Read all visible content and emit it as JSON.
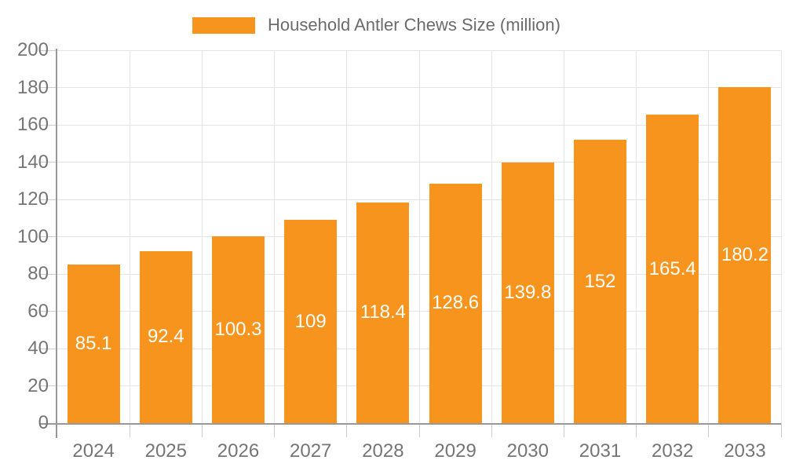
{
  "chart_data": {
    "type": "bar",
    "title": "Household Antler Chews Size (million)",
    "categories": [
      "2024",
      "2025",
      "2026",
      "2027",
      "2028",
      "2029",
      "2030",
      "2031",
      "2032",
      "2033"
    ],
    "values": [
      85.1,
      92.4,
      100.3,
      109,
      118.4,
      128.6,
      139.8,
      152,
      165.4,
      180.2
    ],
    "value_labels": [
      "85.1",
      "92.4",
      "100.3",
      "109",
      "118.4",
      "128.6",
      "139.8",
      "152",
      "165.4",
      "180.2"
    ],
    "xlabel": "",
    "ylabel": "",
    "ylim": [
      0,
      200
    ],
    "ytick_step": 20,
    "ytick_labels": [
      "0",
      "20",
      "40",
      "60",
      "80",
      "100",
      "120",
      "140",
      "160",
      "180",
      "200"
    ],
    "grid": true,
    "legend": {
      "position": "top",
      "label": "Household Antler Chews Size (million)"
    },
    "colors": {
      "bar": "#F7941E",
      "grid": "#E5E5E5",
      "axis_line": "#999999",
      "tick": "#CCCCCC",
      "tick_label": "#757575",
      "legend_text": "#6B6B6B",
      "value_label": "#FFFFFF",
      "background": "#FFFFFF"
    }
  }
}
